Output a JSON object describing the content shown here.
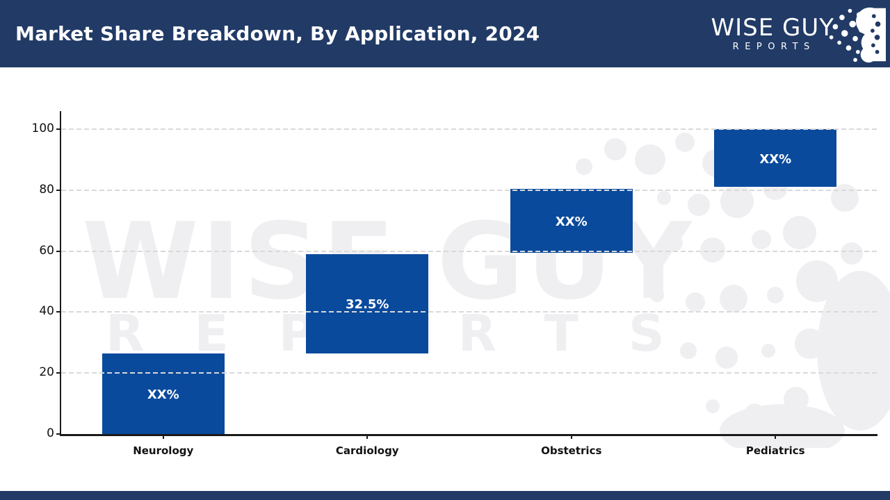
{
  "header": {
    "title": "Market Share Breakdown, By Application, 2024",
    "brand_line1": "WISE GUY",
    "brand_line2": "REPORTS"
  },
  "watermark": {
    "line1": "WISE GUY",
    "line2": "REPORTS"
  },
  "chart_data": {
    "type": "bar",
    "subtype": "waterfall-floating-bars",
    "title": "Market Share Breakdown, By Application, 2024",
    "categories": [
      "Neurology",
      "Cardiology",
      "Obstetrics",
      "Pediatrics"
    ],
    "segments": [
      {
        "category": "Neurology",
        "start": 0,
        "end": 26.5,
        "label": "XX%"
      },
      {
        "category": "Cardiology",
        "start": 26.5,
        "end": 59.0,
        "label": "32.5%"
      },
      {
        "category": "Obstetrics",
        "start": 59.5,
        "end": 80.5,
        "label": "XX%"
      },
      {
        "category": "Pediatrics",
        "start": 81.0,
        "end": 100.0,
        "label": "XX%"
      }
    ],
    "yticks": [
      0,
      20,
      40,
      60,
      80,
      100
    ],
    "ylim": [
      0,
      105
    ],
    "xlabel": "",
    "ylabel": "",
    "grid": "dashed-horizontal, drawn above bars",
    "legend": "none",
    "bar_color": "#0a4a9c",
    "bar_label_color": "#ffffff"
  },
  "colors": {
    "header_bg": "#213a66",
    "footer_bg": "#213a66",
    "bar": "#0a4a9c",
    "grid": "#d9d9d9",
    "watermark": "#efeff2",
    "axis": "#1a1a1a"
  }
}
